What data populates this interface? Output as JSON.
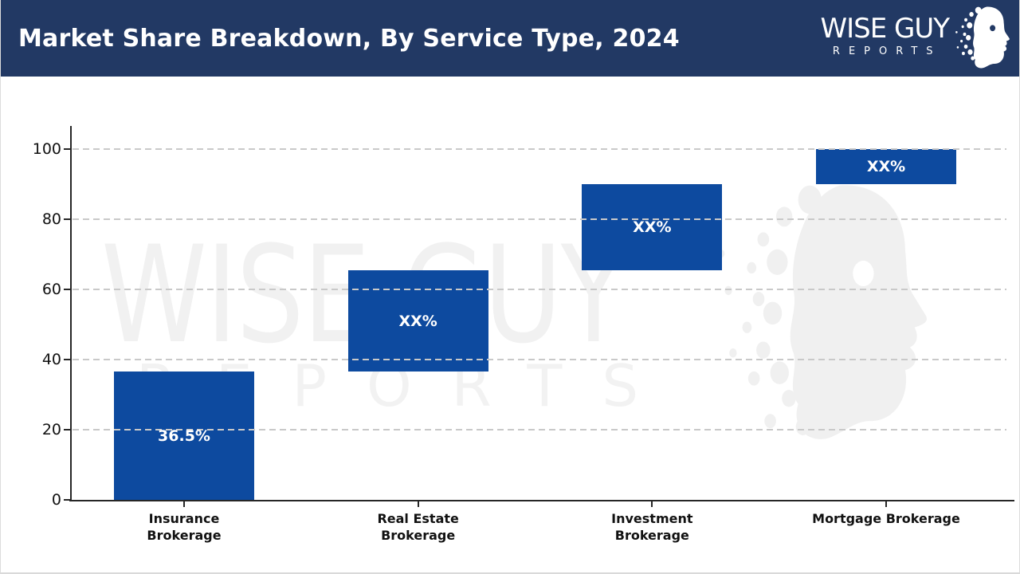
{
  "header": {
    "title": "Market Share Breakdown, By Service Type, 2024",
    "logo_line1": "WISE GUY",
    "logo_line2": "REPORTS"
  },
  "watermark": {
    "line1": "WISE GUY",
    "line2": "REPORTS"
  },
  "chart_data": {
    "type": "bar",
    "variant": "floating-segment-waterfall",
    "title": "Market Share Breakdown, By Service Type, 2024",
    "categories": [
      "Insurance Brokerage",
      "Real Estate Brokerage",
      "Investment Brokerage",
      "Mortgage Brokerage"
    ],
    "category_label_lines": [
      [
        "Insurance",
        "Brokerage"
      ],
      [
        "Real Estate",
        "Brokerage"
      ],
      [
        "Investment",
        "Brokerage"
      ],
      [
        "Mortgage Brokerage"
      ]
    ],
    "segments": [
      {
        "category": "Insurance Brokerage",
        "start": 0,
        "end": 36.5,
        "label": "36.5%"
      },
      {
        "category": "Real Estate Brokerage",
        "start": 36.5,
        "end": 65.5,
        "label": "XX%"
      },
      {
        "category": "Investment Brokerage",
        "start": 65.5,
        "end": 90,
        "label": "XX%"
      },
      {
        "category": "Mortgage Brokerage",
        "start": 90,
        "end": 100,
        "label": "XX%"
      }
    ],
    "yticks": [
      0,
      20,
      40,
      60,
      80,
      100
    ],
    "ylim": [
      0,
      105
    ],
    "xlabel": "",
    "ylabel": "",
    "grid": "horizontal-dashed",
    "grid_above_bars": true,
    "legend": "none",
    "colors": {
      "bar": "#0d4a9f",
      "grid": "#c9c9c9",
      "axis": "#262626",
      "bar_label": "#ffffff",
      "tick_label": "#111111",
      "header_bg": "#223964",
      "watermark": "#f1f1f1"
    }
  }
}
